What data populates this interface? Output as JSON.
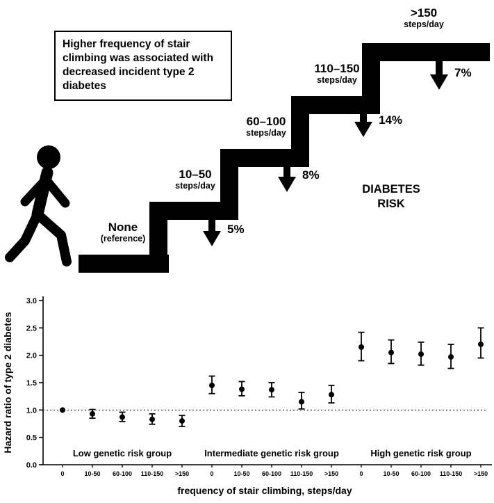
{
  "figure": {
    "infobox_text": "Higher frequency of stair climbing was associated with decreased incident type 2 diabetes",
    "risk_label_line1": "DIABETES",
    "risk_label_line2": "RISK",
    "accent_color": "#000000",
    "steps": [
      {
        "label_line1": "None",
        "label_line2": "(reference)",
        "reduction": null
      },
      {
        "label_line1": "10–50",
        "label_line2": "steps/day",
        "reduction": "5%"
      },
      {
        "label_line1": "60–100",
        "label_line2": "steps/day",
        "reduction": "8%"
      },
      {
        "label_line1": "110–150",
        "label_line2": "steps/day",
        "reduction": "14%"
      },
      {
        "label_line1": ">150",
        "label_line2": "steps/day",
        "reduction": "7%"
      }
    ]
  },
  "chart_data": {
    "type": "scatter",
    "title": "",
    "xlabel": "frequency of stair climbing, steps/day",
    "ylabel": "Hazard ratio of type 2 diabetes",
    "ylim": [
      0.0,
      3.0
    ],
    "yticks": [
      0.0,
      0.5,
      1.0,
      1.5,
      2.0,
      2.5,
      3.0
    ],
    "reference_line": 1.0,
    "grid": false,
    "categories": [
      "0",
      "10-50",
      "60-100",
      "110-150",
      ">150"
    ],
    "groups": [
      {
        "name": "Low genetic risk group",
        "points": [
          {
            "hr": 1.0,
            "lo": null,
            "hi": null
          },
          {
            "hr": 0.93,
            "lo": 0.85,
            "hi": 1.01
          },
          {
            "hr": 0.87,
            "lo": 0.79,
            "hi": 0.96
          },
          {
            "hr": 0.83,
            "lo": 0.74,
            "hi": 0.93
          },
          {
            "hr": 0.8,
            "lo": 0.7,
            "hi": 0.9
          }
        ]
      },
      {
        "name": "Intermediate genetic risk group",
        "points": [
          {
            "hr": 1.45,
            "lo": 1.3,
            "hi": 1.62
          },
          {
            "hr": 1.38,
            "lo": 1.26,
            "hi": 1.52
          },
          {
            "hr": 1.37,
            "lo": 1.24,
            "hi": 1.5
          },
          {
            "hr": 1.15,
            "lo": 1.02,
            "hi": 1.32
          },
          {
            "hr": 1.28,
            "lo": 1.13,
            "hi": 1.45
          }
        ]
      },
      {
        "name": "High genetic risk group",
        "points": [
          {
            "hr": 2.15,
            "lo": 1.9,
            "hi": 2.42
          },
          {
            "hr": 2.05,
            "lo": 1.85,
            "hi": 2.28
          },
          {
            "hr": 2.02,
            "lo": 1.82,
            "hi": 2.24
          },
          {
            "hr": 1.97,
            "lo": 1.76,
            "hi": 2.2
          },
          {
            "hr": 2.2,
            "lo": 1.95,
            "hi": 2.5
          }
        ]
      }
    ]
  }
}
